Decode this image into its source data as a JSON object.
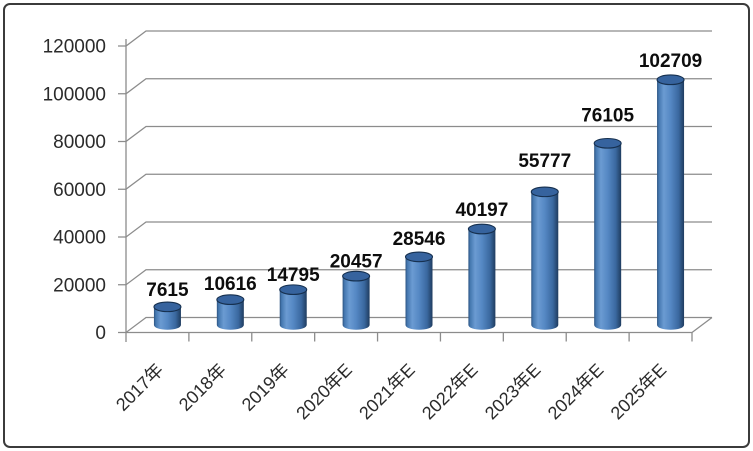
{
  "chart_data": {
    "type": "bar",
    "subtype": "3d-cylinder",
    "title": "",
    "xlabel": "",
    "ylabel": "",
    "categories": [
      "2017年",
      "2018年",
      "2019年",
      "2020年E",
      "2021年E",
      "2022年E",
      "2023年E",
      "2024年E",
      "2025年E"
    ],
    "values": [
      7615,
      10616,
      14795,
      20457,
      28546,
      40197,
      55777,
      76105,
      102709
    ],
    "data_labels": [
      "7615",
      "10616",
      "14795",
      "20457",
      "28546",
      "40197",
      "55777",
      "76105",
      "102709"
    ],
    "y_ticks": [
      0,
      20000,
      40000,
      60000,
      80000,
      100000,
      120000
    ],
    "y_tick_labels": [
      "0",
      "20000",
      "40000",
      "60000",
      "80000",
      "100000",
      "120000"
    ],
    "ylim": [
      0,
      120000
    ],
    "grid": true,
    "legend": false,
    "colors": {
      "bar_left_edge": "#2c5380",
      "bar_left_mid": "#4578b0",
      "bar_highlight": "#6b9bd2",
      "bar_mid": "#5588c4",
      "bar_right_mid": "#3a689f",
      "bar_right_edge": "#1f3c5f",
      "bar_top": "#36639e",
      "bar_top_rim": "#16304f",
      "gridline": "#8c8c8c",
      "axis_text": "#2b2b2b",
      "data_label_text": "#0d0d0d",
      "border": "#3b3b3b",
      "background": "#ffffff"
    }
  }
}
